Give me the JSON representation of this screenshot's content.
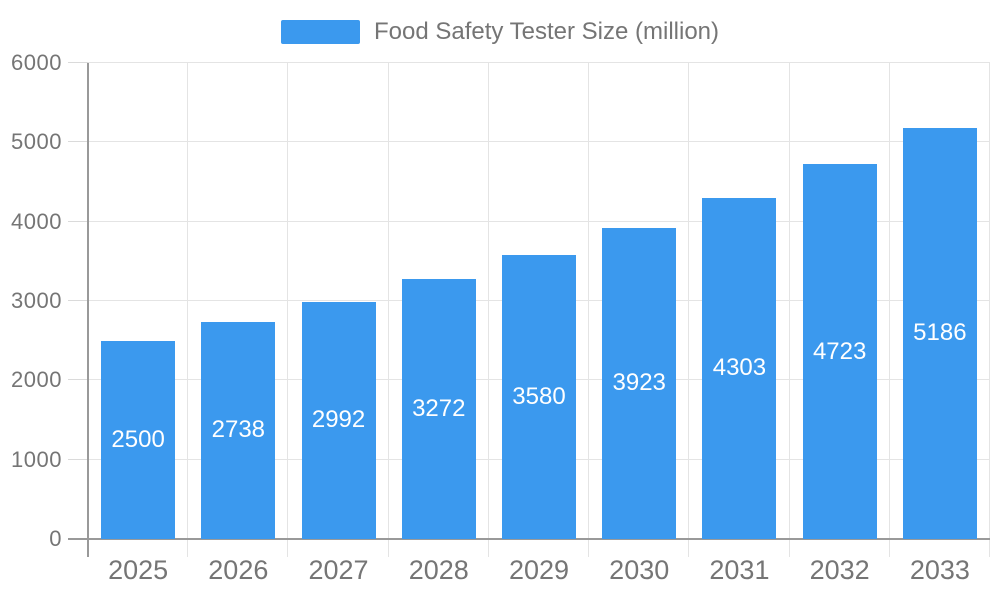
{
  "legend": {
    "label": "Food Safety Tester Size (million)"
  },
  "colors": {
    "bar": "#3B99EE",
    "bar_label": "#FFFFFF",
    "axis_line": "#999999",
    "grid_line": "#E4E4E4",
    "tick_line": "#DADADA",
    "axis_text": "#757575",
    "background": "#FFFFFF"
  },
  "chart_data": {
    "type": "bar",
    "title": "Food Safety Tester Size (million)",
    "categories": [
      "2025",
      "2026",
      "2027",
      "2028",
      "2029",
      "2030",
      "2031",
      "2032",
      "2033"
    ],
    "series": [
      {
        "name": "Food Safety Tester Size (million)",
        "values": [
          2500,
          2738,
          2992,
          3272,
          3580,
          3923,
          4303,
          4723,
          5186
        ]
      }
    ],
    "xlabel": "",
    "ylabel": "",
    "ylim": [
      0,
      6000
    ],
    "yticks": [
      0,
      1000,
      2000,
      3000,
      4000,
      5000,
      6000
    ],
    "grid": true,
    "legend_position": "top-center",
    "value_labels": "inside-center"
  }
}
